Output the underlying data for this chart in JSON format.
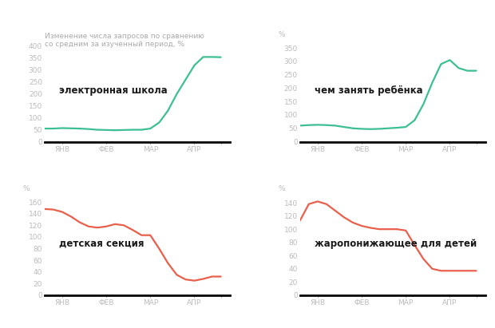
{
  "title_text": "Изменение числа запросов по сравнению\nсо средним за изученный период, %",
  "background_color": "#ffffff",
  "subplot_configs": [
    {
      "label": "электронная школа",
      "line_color": "#3dbf95",
      "yticks": [
        0,
        50,
        100,
        150,
        200,
        250,
        300,
        350,
        400
      ],
      "ylim": [
        0,
        415
      ],
      "show_percent": false,
      "x": [
        0,
        1,
        2,
        3,
        4,
        5,
        6,
        7,
        8,
        9,
        10,
        11,
        12,
        13,
        14,
        15,
        16,
        17,
        18,
        19,
        20
      ],
      "y": [
        55,
        55,
        57,
        56,
        55,
        53,
        50,
        49,
        48,
        49,
        50,
        50,
        55,
        80,
        130,
        200,
        260,
        320,
        355,
        355,
        354
      ]
    },
    {
      "label": "чем занять ребёнка",
      "line_color": "#3dbf95",
      "yticks": [
        0,
        50,
        100,
        150,
        200,
        250,
        300,
        350
      ],
      "ylim": [
        0,
        370
      ],
      "show_percent": true,
      "x": [
        0,
        1,
        2,
        3,
        4,
        5,
        6,
        7,
        8,
        9,
        10,
        11,
        12,
        13,
        14,
        15,
        16,
        17,
        18,
        19,
        20
      ],
      "y": [
        60,
        62,
        63,
        62,
        60,
        55,
        50,
        48,
        47,
        48,
        50,
        52,
        55,
        80,
        140,
        220,
        290,
        305,
        275,
        265,
        265
      ]
    },
    {
      "label": "детская секция",
      "line_color": "#e8604c",
      "yticks": [
        0,
        20,
        40,
        60,
        80,
        100,
        120,
        140,
        160
      ],
      "ylim": [
        0,
        170
      ],
      "show_percent": true,
      "x": [
        0,
        1,
        2,
        3,
        4,
        5,
        6,
        7,
        8,
        9,
        10,
        11,
        12,
        13,
        14,
        15,
        16,
        17,
        18,
        19,
        20
      ],
      "y": [
        148,
        147,
        143,
        135,
        125,
        118,
        116,
        118,
        122,
        120,
        112,
        103,
        103,
        80,
        55,
        35,
        27,
        25,
        28,
        32,
        32
      ]
    },
    {
      "label": "жаропонижающее для детей",
      "line_color": "#e8604c",
      "yticks": [
        0,
        20,
        40,
        60,
        80,
        100,
        120,
        140
      ],
      "ylim": [
        0,
        150
      ],
      "show_percent": true,
      "x": [
        0,
        1,
        2,
        3,
        4,
        5,
        6,
        7,
        8,
        9,
        10,
        11,
        12,
        13,
        14,
        15,
        16,
        17,
        18,
        19,
        20
      ],
      "y": [
        113,
        138,
        142,
        138,
        128,
        118,
        110,
        105,
        102,
        100,
        100,
        100,
        98,
        76,
        55,
        40,
        37,
        37,
        37,
        37,
        37
      ]
    }
  ],
  "xtick_positions": [
    2,
    7,
    12,
    17,
    20
  ],
  "xtick_labels": [
    "ЯНВ",
    "ФЕВ",
    "МАР",
    "АПР",
    ""
  ],
  "label_fontsize": 8.5,
  "tick_fontsize": 6.5,
  "title_fontsize": 6.5,
  "line_width": 1.6
}
